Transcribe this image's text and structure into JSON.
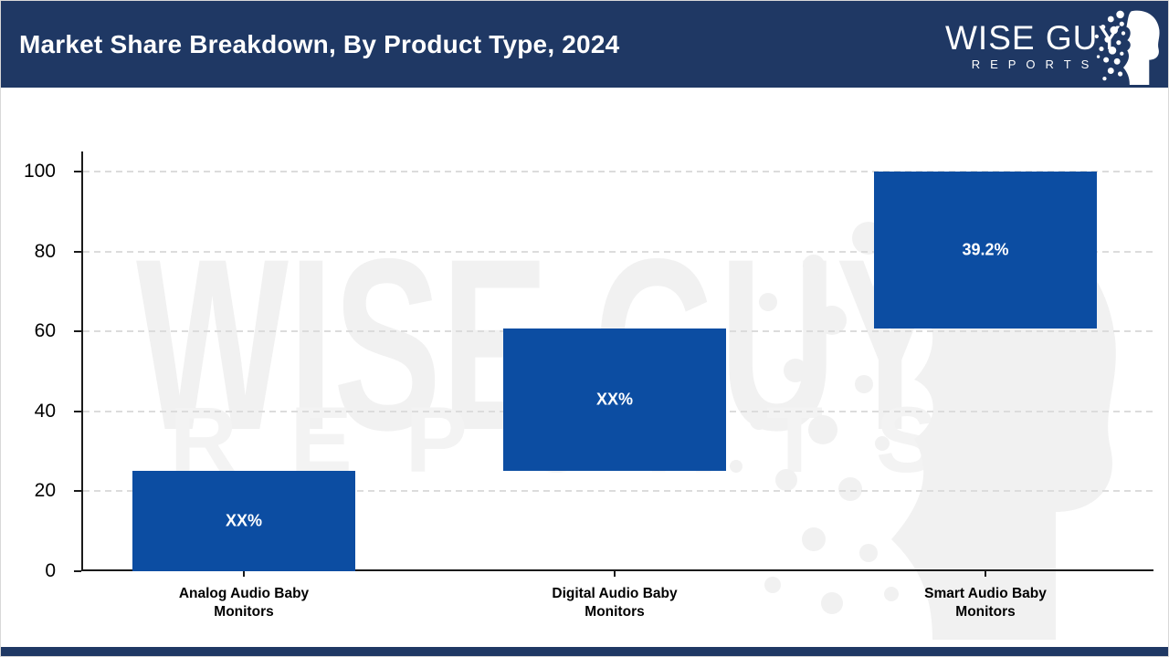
{
  "header": {
    "title": "Market Share Breakdown, By Product Type, 2024",
    "logo": {
      "line1": "WISE GUY",
      "line2": "REPORTS"
    }
  },
  "watermark": {
    "line1": "WISE GUY",
    "line2": "REPORTS"
  },
  "colors": {
    "header_bg": "#1f3864",
    "bar_fill": "#0c4da2",
    "bar_label": "#ffffff",
    "gridline": "#dcdcdc",
    "axis": "#1a1a1a",
    "watermark": "#f1f1f1",
    "footer_bg": "#1f3864"
  },
  "chart_data": {
    "type": "bar",
    "subtype": "floating-waterfall",
    "title": "Market Share Breakdown, By Product Type, 2024",
    "xlabel": "",
    "ylabel": "",
    "categories": [
      "Analog Audio Baby Monitors",
      "Digital Audio Baby Monitors",
      "Smart Audio Baby Monitors"
    ],
    "bars": [
      {
        "category": "Analog Audio Baby Monitors",
        "category_lines": [
          "Analog Audio Baby",
          "Monitors"
        ],
        "start": 0,
        "end": 25.1,
        "value_label": "XX%"
      },
      {
        "category": "Digital Audio Baby Monitors",
        "category_lines": [
          "Digital Audio Baby",
          "Monitors"
        ],
        "start": 25.1,
        "end": 60.8,
        "value_label": "XX%"
      },
      {
        "category": "Smart Audio Baby Monitors",
        "category_lines": [
          "Smart Audio Baby",
          "Monitors"
        ],
        "start": 60.8,
        "end": 100,
        "value_label": "39.2%"
      }
    ],
    "yticks": [
      0,
      20,
      40,
      60,
      80,
      100
    ],
    "ylim": [
      0,
      105
    ],
    "grid": "horizontal-dashed",
    "legend": "none"
  }
}
